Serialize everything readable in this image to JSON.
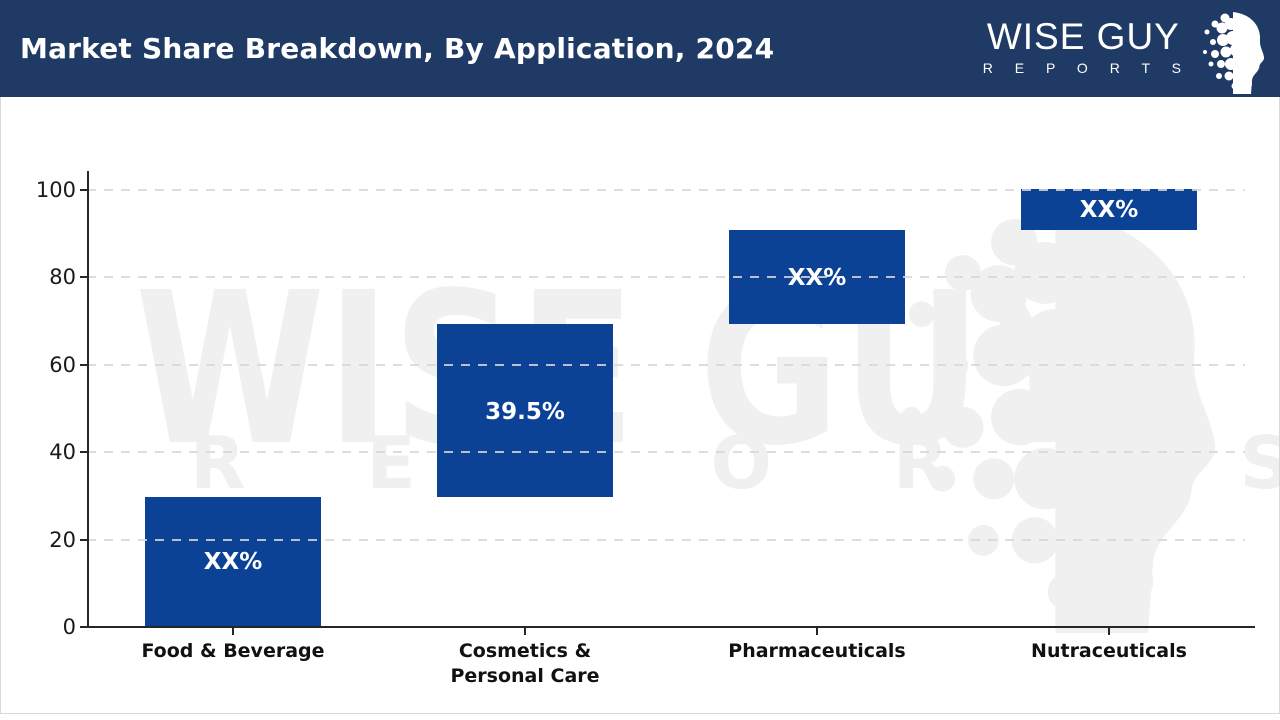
{
  "header": {
    "title": "Market Share Breakdown, By Application, 2024",
    "logo": {
      "line1": "WISE GUY",
      "line2": "R E P O R T S"
    }
  },
  "watermark": {
    "line1": "WISE GUY",
    "line2": "R E P O R T S"
  },
  "colors": {
    "header_bg": "#203a66",
    "bar": "#0b4295",
    "grid": "#dedede",
    "axis": "#262626",
    "watermark": "#f0f0f1",
    "bar_label": "#ffffff"
  },
  "chart_data": {
    "type": "bar",
    "subtype": "waterfall",
    "title": "Market Share Breakdown, By Application, 2024",
    "categories": [
      "Food & Beverage",
      "Cosmetics &\nPersonal Care",
      "Pharmaceuticals",
      "Nutraceuticals"
    ],
    "segments": [
      {
        "category": "Food & Beverage",
        "start": 0,
        "end": 29.5,
        "label": "XX%"
      },
      {
        "category": "Cosmetics & Personal Care",
        "start": 29.5,
        "end": 69,
        "label": "39.5%"
      },
      {
        "category": "Pharmaceuticals",
        "start": 69,
        "end": 90.5,
        "label": "XX%"
      },
      {
        "category": "Nutraceuticals",
        "start": 90.5,
        "end": 100,
        "label": "XX%"
      }
    ],
    "yticks": [
      0,
      20,
      40,
      60,
      80,
      100
    ],
    "ylim": [
      0,
      104
    ],
    "xlabel": "",
    "ylabel": "",
    "grid": "horizontal dashed, drawn over bars",
    "legend": "none"
  }
}
